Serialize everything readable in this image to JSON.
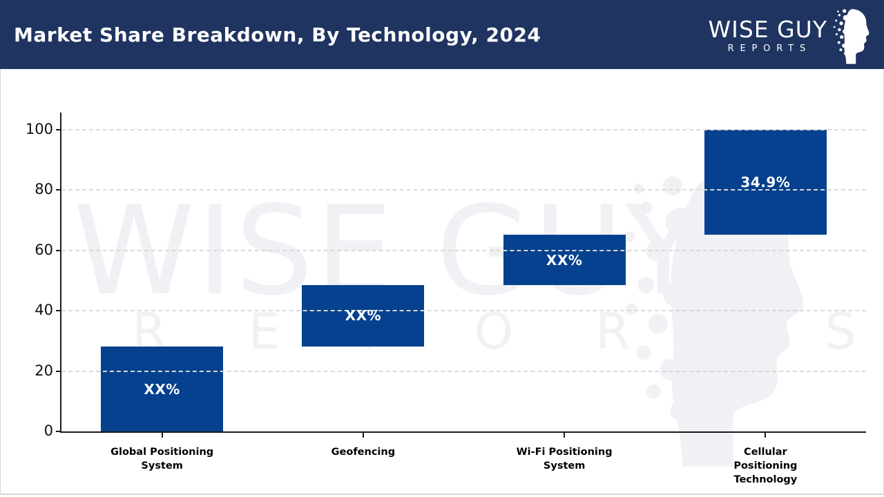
{
  "header": {
    "title": "Market Share Breakdown, By Technology, 2024",
    "logo": {
      "brand": "WISE GUY",
      "sub": "REPORTS"
    }
  },
  "watermark": {
    "line1": "WISE GUY",
    "line2": "R E P O R T S"
  },
  "chart_data": {
    "type": "bar",
    "subtype": "waterfall-segments",
    "title": "Market Share Breakdown, By Technology, 2024",
    "categories": [
      "Global Positioning System",
      "Geofencing",
      "Wi-Fi Positioning System",
      "Cellular Positioning Technology"
    ],
    "segments": [
      {
        "label": "Global Positioning System",
        "label_lines": [
          "Global Positioning",
          "System"
        ],
        "start": 0,
        "end": 28.1,
        "value_label": "XX%"
      },
      {
        "label": "Geofencing",
        "label_lines": [
          "Geofencing"
        ],
        "start": 28.1,
        "end": 48.5,
        "value_label": "XX%"
      },
      {
        "label": "Wi-Fi Positioning System",
        "label_lines": [
          "Wi-Fi Positioning",
          "System"
        ],
        "start": 48.5,
        "end": 65.1,
        "value_label": "XX%"
      },
      {
        "label": "Cellular Positioning Technology",
        "label_lines": [
          "Cellular",
          "Positioning",
          "Technology"
        ],
        "start": 65.1,
        "end": 100,
        "value_label": "34.9%"
      }
    ],
    "ylim": [
      0,
      100
    ],
    "yticks": [
      0,
      20,
      40,
      60,
      80,
      100
    ],
    "grid": "horizontal-dashed",
    "legend": "none",
    "colors": {
      "bar": "#05418f",
      "header_bg": "#1f3461",
      "grid": "#d9d9d9",
      "axis": "#1a1a1a",
      "watermark": "#eff1f4",
      "title_text": "#ffffff",
      "value_text": "#ffffff"
    }
  }
}
